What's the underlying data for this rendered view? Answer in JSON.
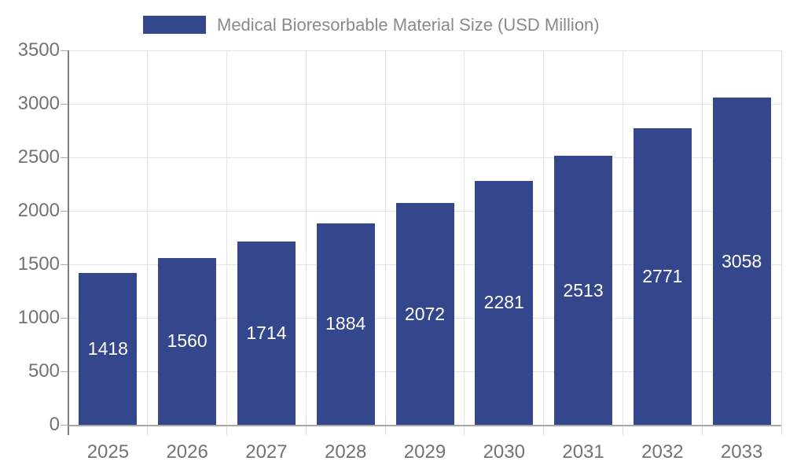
{
  "chart_data": {
    "type": "bar",
    "title": "Medical Bioresorbable Material Size (USD Million)",
    "series_name": "Medical Bioresorbable Material Size (USD Million)",
    "categories": [
      "2025",
      "2026",
      "2027",
      "2028",
      "2029",
      "2030",
      "2031",
      "2032",
      "2033"
    ],
    "values": [
      1418,
      1560,
      1714,
      1884,
      2072,
      2281,
      2513,
      2771,
      3058
    ],
    "xlabel": "",
    "ylabel": "",
    "ylim": [
      0,
      3500
    ],
    "yticks": [
      0,
      500,
      1000,
      1500,
      2000,
      2500,
      3000,
      3500
    ],
    "grid": true,
    "legend_position": "top-center",
    "value_labels": "inside-center-white",
    "colors": {
      "bar": "#35478C",
      "value_label": "#FFFFFF",
      "axis_label": "#737373",
      "title": "#8A8A8A",
      "grid_line": "#E5E5E5",
      "y_axis_line": "#808080",
      "x_axis_line": "#A8A8A8",
      "y_tick": "#ADADAD",
      "x_tick": "#DCDCDC",
      "background": "#FFFFFF"
    }
  }
}
